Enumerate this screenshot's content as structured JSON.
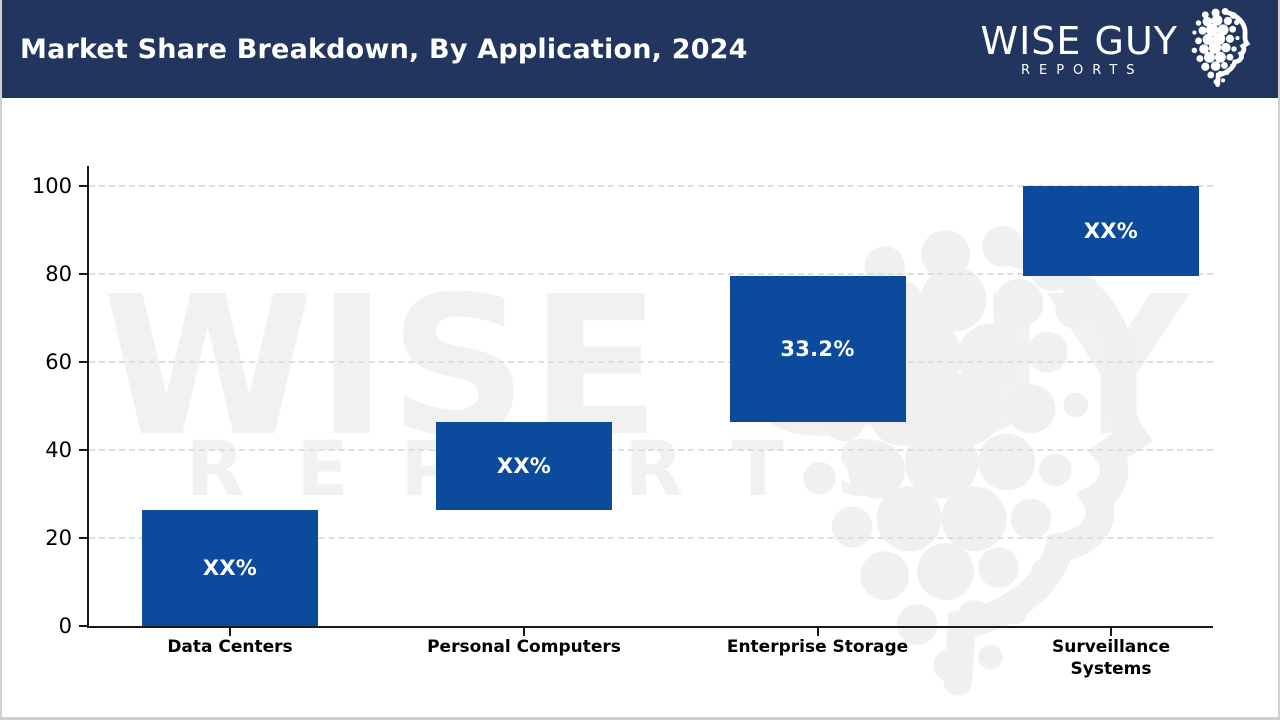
{
  "header": {
    "title": "Market Share Breakdown, By Application, 2024",
    "background": "#21355e",
    "logo": {
      "name": "WISE GUY",
      "subtitle": "REPORTS"
    }
  },
  "watermark": {
    "line1": "WISE GUY",
    "line2": "REPORTS"
  },
  "chart_data": {
    "type": "bar",
    "subtype": "waterfall-floating-bars",
    "title": "Market Share Breakdown, By Application, 2024",
    "xlabel": "",
    "ylabel": "",
    "ylim": [
      0,
      100
    ],
    "y_ticks": [
      0,
      20,
      40,
      60,
      80,
      100
    ],
    "grid": "horizontal-dashed",
    "gridline_color": "#dedede",
    "bar_color": "#0b4a9d",
    "categories": [
      "Data Centers",
      "Personal Computers",
      "Enterprise Storage",
      "Surveillance Systems"
    ],
    "bars": [
      {
        "category": "Data Centers",
        "lines": [
          "Data Centers"
        ],
        "start": 0,
        "end": 26.4,
        "value": 26.4,
        "label": "XX%"
      },
      {
        "category": "Personal Computers",
        "lines": [
          "Personal Computers"
        ],
        "start": 26.4,
        "end": 46.4,
        "value": 20.0,
        "label": "XX%"
      },
      {
        "category": "Enterprise Storage",
        "lines": [
          "Enterprise Storage"
        ],
        "start": 46.4,
        "end": 79.6,
        "value": 33.2,
        "label": "33.2%"
      },
      {
        "category": "Surveillance Systems",
        "lines": [
          "Surveillance",
          "Systems"
        ],
        "start": 79.6,
        "end": 100,
        "value": 20.4,
        "label": "XX%"
      }
    ]
  }
}
